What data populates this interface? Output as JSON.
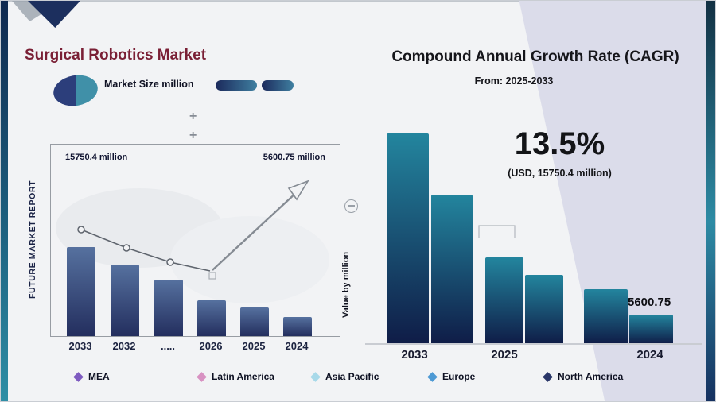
{
  "left": {
    "title": "Surgical Robotics  Market",
    "legend_label": "Market Size million",
    "side_label": "FUTURE MARKET REPORT",
    "value_top_left": "15750.4 million",
    "value_top_right": "5600.75 million"
  },
  "right": {
    "title": "Compound Annual Growth Rate (CAGR)",
    "subtitle": "From: 2025-2033",
    "cagr": "13.5%",
    "cagr_note": "(USD, 15750.4 million)",
    "ylabel": "Value by million",
    "annotation": "5600.75"
  },
  "decor": {
    "plus": "+"
  },
  "legend": [
    {
      "label": "MEA",
      "color": "#7e5bc0"
    },
    {
      "label": "Latin America",
      "color": "#d892c2"
    },
    {
      "label": "Asia Pacific",
      "color": "#a8d9e9"
    },
    {
      "label": "Europe",
      "color": "#4e9ad4"
    },
    {
      "label": "North America",
      "color": "#2a3668"
    }
  ],
  "colors": {
    "left_bar_top": "#56719f",
    "left_bar_bottom": "#232e5e",
    "right_bar_top": "#23859e",
    "right_bar_bottom": "#0f1c47",
    "title_maroon": "#7a1f35",
    "accent_teal": "#2f8fa6",
    "accent_navy": "#14305c",
    "swoosh_lavender": "#dbdcea"
  },
  "chart_data": [
    {
      "type": "bar",
      "title": "Surgical Robotics Market - Market Size (million)",
      "categories": [
        "2033",
        "2032",
        ".....",
        "2026",
        "2025",
        "2024"
      ],
      "values_est_million": [
        15750.4,
        13240,
        11075,
        8110,
        7080,
        5600.75
      ],
      "bar_heights_pct": [
        100,
        80,
        63,
        40,
        32,
        21
      ],
      "labeled_values": {
        "2033": "15750.4 million",
        "2024": "5600.75 million"
      },
      "legend": [
        "Market Size million"
      ],
      "annotations": "declining bars from 2033 to 2024 with marker trend line and hollow arrow rising to upper right"
    },
    {
      "type": "bar",
      "title": "Compound Annual Growth Rate (CAGR)",
      "subtitle": "From: 2025-2033",
      "categories": [
        "2033",
        "2025",
        "2024"
      ],
      "series": [
        {
          "name": "primary",
          "heights_pct": [
            100,
            41,
            26
          ]
        },
        {
          "name": "secondary",
          "heights_pct": [
            71,
            33,
            14
          ]
        }
      ],
      "cagr_pct": 13.5,
      "cagr_note": "(USD, 15750.4 million)",
      "labeled_values": {
        "2024": "5600.75"
      },
      "ylabel": "Value by million"
    }
  ]
}
